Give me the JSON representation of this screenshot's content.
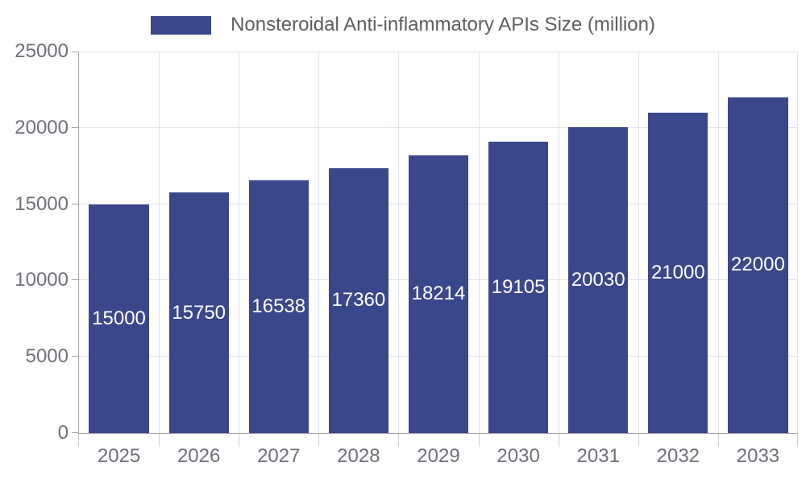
{
  "legend": {
    "position": "top-center",
    "items": [
      {
        "label": "Nonsteroidal Anti-inflammatory APIs Size (million)",
        "swatch_color": "#3A478A"
      }
    ]
  },
  "chart_data": {
    "type": "bar",
    "title": "",
    "xlabel": "",
    "ylabel": "",
    "categories": [
      "2025",
      "2026",
      "2027",
      "2028",
      "2029",
      "2030",
      "2031",
      "2032",
      "2033"
    ],
    "series": [
      {
        "name": "Nonsteroidal Anti-inflammatory APIs Size (million)",
        "values": [
          15000,
          15750,
          16538,
          17360,
          18214,
          19105,
          20030,
          21000,
          22000
        ]
      }
    ],
    "yticks": [
      0,
      5000,
      10000,
      15000,
      20000,
      25000
    ],
    "ylim": [
      0,
      25000
    ],
    "grid": true,
    "gridlines": "horizontal-and-vertical",
    "legend_position": "top",
    "bar_color": "#3A478A",
    "value_label_position": "inside-center",
    "value_label_color": "#FFFFFF"
  },
  "style": {
    "background": "#FFFFFF",
    "axis_line_color": "#A6A6A6",
    "grid_color": "#E2E3EC",
    "axis_label_color": "#6E7079",
    "legend_text_color": "#5E5E60"
  }
}
